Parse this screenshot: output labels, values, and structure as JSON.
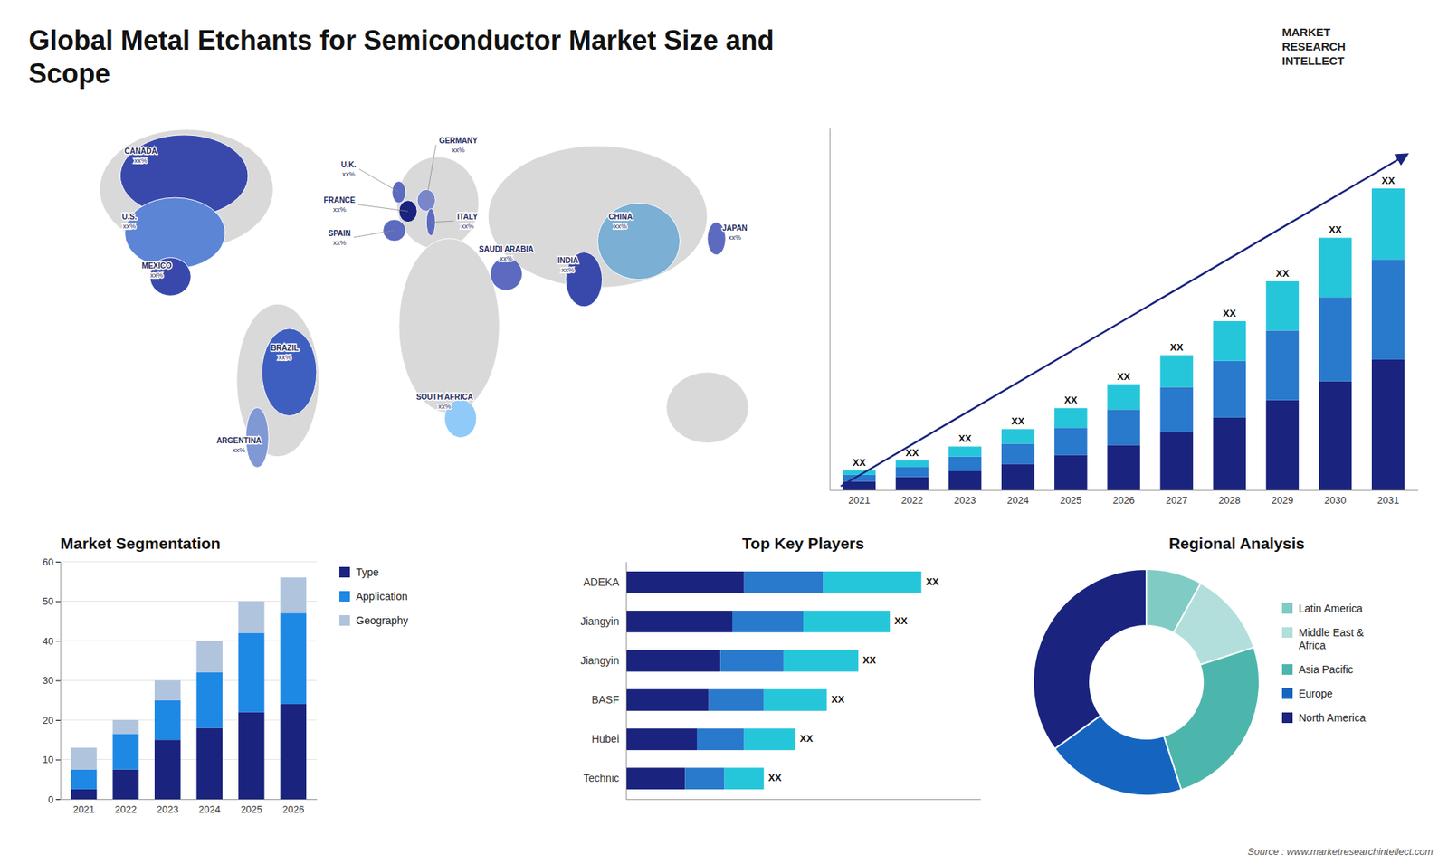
{
  "title": "Global Metal Etchants for Semiconductor Market Size and\nScope",
  "annotations": [
    "MARKET\nRESEARCH\nINTELLECT",
    "Source : www.marketresearchintellect.com"
  ],
  "chart_data": [
    {
      "type": "map",
      "categories": [
        "CANADA",
        "U.S.",
        "MEXICO",
        "BRAZIL",
        "ARGENTINA",
        "U.K.",
        "FRANCE",
        "SPAIN",
        "GERMANY",
        "ITALY",
        "SAUDI ARABIA",
        "SOUTH AFRICA",
        "CHINA",
        "INDIA",
        "JAPAN"
      ],
      "colors": [
        "#3949ab",
        "#5c85d6",
        "#3949ab",
        "#3f5fc0",
        "#8098d4",
        "#5c6bc0",
        "#1a237e",
        "#5c6bc0",
        "#7986cb",
        "#5c6bc0",
        "#5c6bc0",
        "#90caf9",
        "#7bafd4",
        "#3949ab",
        "#5c6bc0"
      ],
      "color": "#d9d9d9",
      "annotations": [
        "xx%",
        "xx%",
        "xx%",
        "xx%",
        "xx%",
        "xx%",
        "xx%",
        "xx%",
        "xx%",
        "xx%",
        "xx%",
        "xx%",
        "xx%",
        "xx%",
        "xx%"
      ]
    },
    {
      "type": "bar",
      "stacked": true,
      "categories": [
        "2021",
        "2022",
        "2023",
        "2024",
        "2025",
        "2026",
        "2027",
        "2028",
        "2029",
        "2030",
        "2031"
      ],
      "series": [
        {
          "color": "#1a237e",
          "values": [
            1.2,
            1.8,
            2.6,
            3.6,
            4.8,
            6.2,
            8.0,
            10.0,
            12.4,
            15.0,
            18.0
          ]
        },
        {
          "color": "#2979cc",
          "values": [
            0.9,
            1.4,
            2.0,
            2.8,
            3.8,
            4.9,
            6.2,
            7.8,
            9.6,
            11.6,
            13.8
          ]
        },
        {
          "color": "#26c6da",
          "values": [
            0.6,
            0.9,
            1.4,
            2.0,
            2.7,
            3.5,
            4.4,
            5.5,
            6.8,
            8.2,
            9.8
          ]
        }
      ],
      "ylim": [
        0,
        49.92
      ],
      "tick_labels": "x",
      "annotations": [
        "XX",
        "XX",
        "XX",
        "XX",
        "XX",
        "XX",
        "XX",
        "XX",
        "XX",
        "XX",
        "XX"
      ]
    },
    {
      "type": "bar",
      "stacked": true,
      "title": "Market Segmentation",
      "categories": [
        "2021",
        "2022",
        "2023",
        "2024",
        "2025",
        "2026"
      ],
      "series": [
        {
          "name": "Type",
          "color": "#1a237e",
          "values": [
            2.5,
            7.5,
            15.0,
            18.0,
            22.0,
            24.0
          ]
        },
        {
          "name": "Application",
          "color": "#1e88e5",
          "values": [
            5.0,
            9.0,
            10.0,
            14.0,
            20.0,
            23.0
          ]
        },
        {
          "name": "Geography",
          "color": "#b0c4de",
          "values": [
            5.5,
            3.5,
            5.0,
            8.0,
            8.0,
            9.0
          ]
        }
      ],
      "ylim": [
        0,
        60
      ],
      "yticks": [
        0,
        10,
        20,
        30,
        40,
        50,
        60
      ],
      "grid": true,
      "legend": "right"
    },
    {
      "type": "bar",
      "orientation": "horizontal",
      "stacked": true,
      "title": "Top Key Players",
      "categories": [
        "ADEKA",
        "Jiangyin",
        "Jiangyin",
        "BASF",
        "Hubei",
        "Technic"
      ],
      "series": [
        {
          "color": "#1a237e",
          "values": [
            3.0,
            2.7,
            2.4,
            2.1,
            1.8,
            1.5
          ]
        },
        {
          "color": "#2979cc",
          "values": [
            2.0,
            1.8,
            1.6,
            1.4,
            1.2,
            1.0
          ]
        },
        {
          "color": "#26c6da",
          "values": [
            2.5,
            2.2,
            1.9,
            1.6,
            1.3,
            1.0
          ]
        }
      ],
      "xlim": [
        0,
        9
      ],
      "tick_labels": "y",
      "annotations": [
        "XX",
        "XX",
        "XX",
        "XX",
        "XX",
        "XX"
      ]
    },
    {
      "type": "donut",
      "title": "Regional Analysis",
      "categories": [
        "Latin America",
        "Middle East &\nAfrica",
        "Asia Pacific",
        "Europe",
        "North America"
      ],
      "values": [
        8,
        12,
        25,
        20,
        35
      ],
      "colors": [
        "#80cbc4",
        "#b2dfdb",
        "#4db6ac",
        "#1565c0",
        "#1a237e"
      ],
      "legend": "right"
    }
  ]
}
